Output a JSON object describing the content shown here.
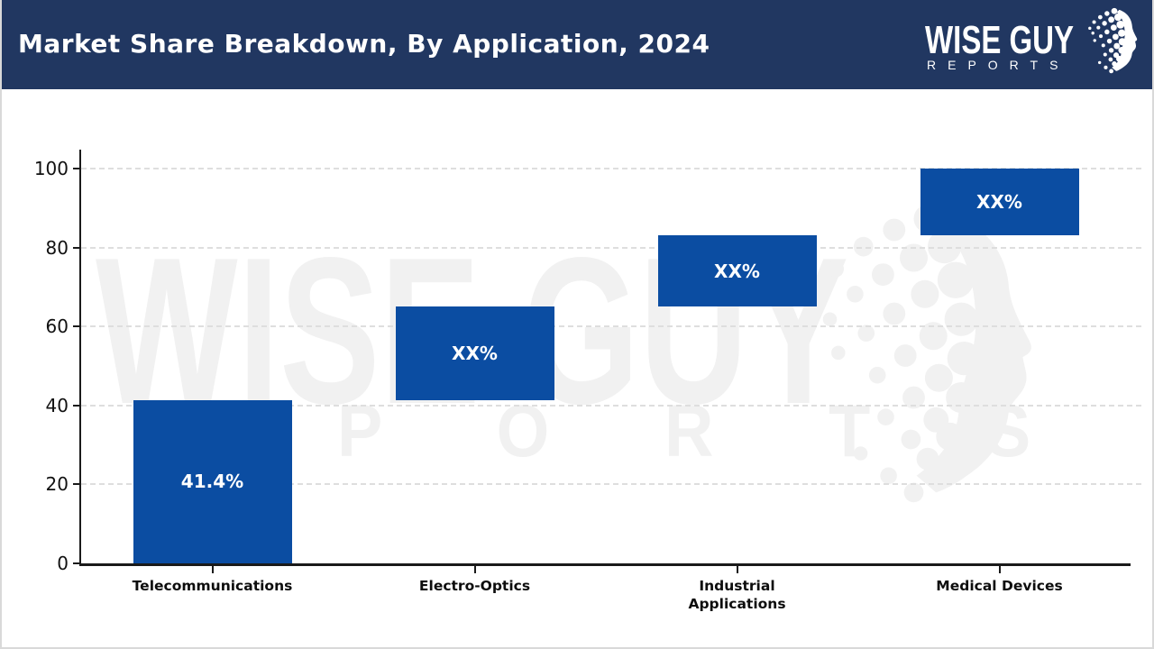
{
  "header": {
    "bg": "#213761",
    "title": "Market Share Breakdown, By Application, 2024",
    "logo": {
      "name": "WISE GUY",
      "sub": "REPORTS"
    }
  },
  "watermark": {
    "line1": "WISE GUY",
    "line2": "P O R T S"
  },
  "chart_data": {
    "type": "bar",
    "subtype": "waterfall-floating-bars",
    "title": "Market Share Breakdown, By Application, 2024",
    "categories": [
      "Telecommunications",
      "Electro-Optics",
      "Industrial Applications",
      "Medical Devices"
    ],
    "category_lines": [
      [
        "Telecommunications"
      ],
      [
        "Electro-Optics"
      ],
      [
        "Industrial",
        "Applications"
      ],
      [
        "Medical Devices"
      ]
    ],
    "series": [
      {
        "name": "Market share (%)",
        "segments": [
          {
            "category": "Telecommunications",
            "start": 0,
            "end": 41.4,
            "label": "41.4%"
          },
          {
            "category": "Electro-Optics",
            "start": 41.4,
            "end": 65,
            "label": "XX%"
          },
          {
            "category": "Industrial Applications",
            "start": 65,
            "end": 83,
            "label": "XX%"
          },
          {
            "category": "Medical Devices",
            "start": 83,
            "end": 100,
            "label": "XX%"
          }
        ]
      }
    ],
    "bar_color": "#0b4da2",
    "bar_label_color": "#ffffff",
    "ylim": [
      0,
      100
    ],
    "yticks": [
      0,
      20,
      40,
      60,
      80,
      100
    ],
    "grid": "horizontal-dashed",
    "legend": "none"
  }
}
